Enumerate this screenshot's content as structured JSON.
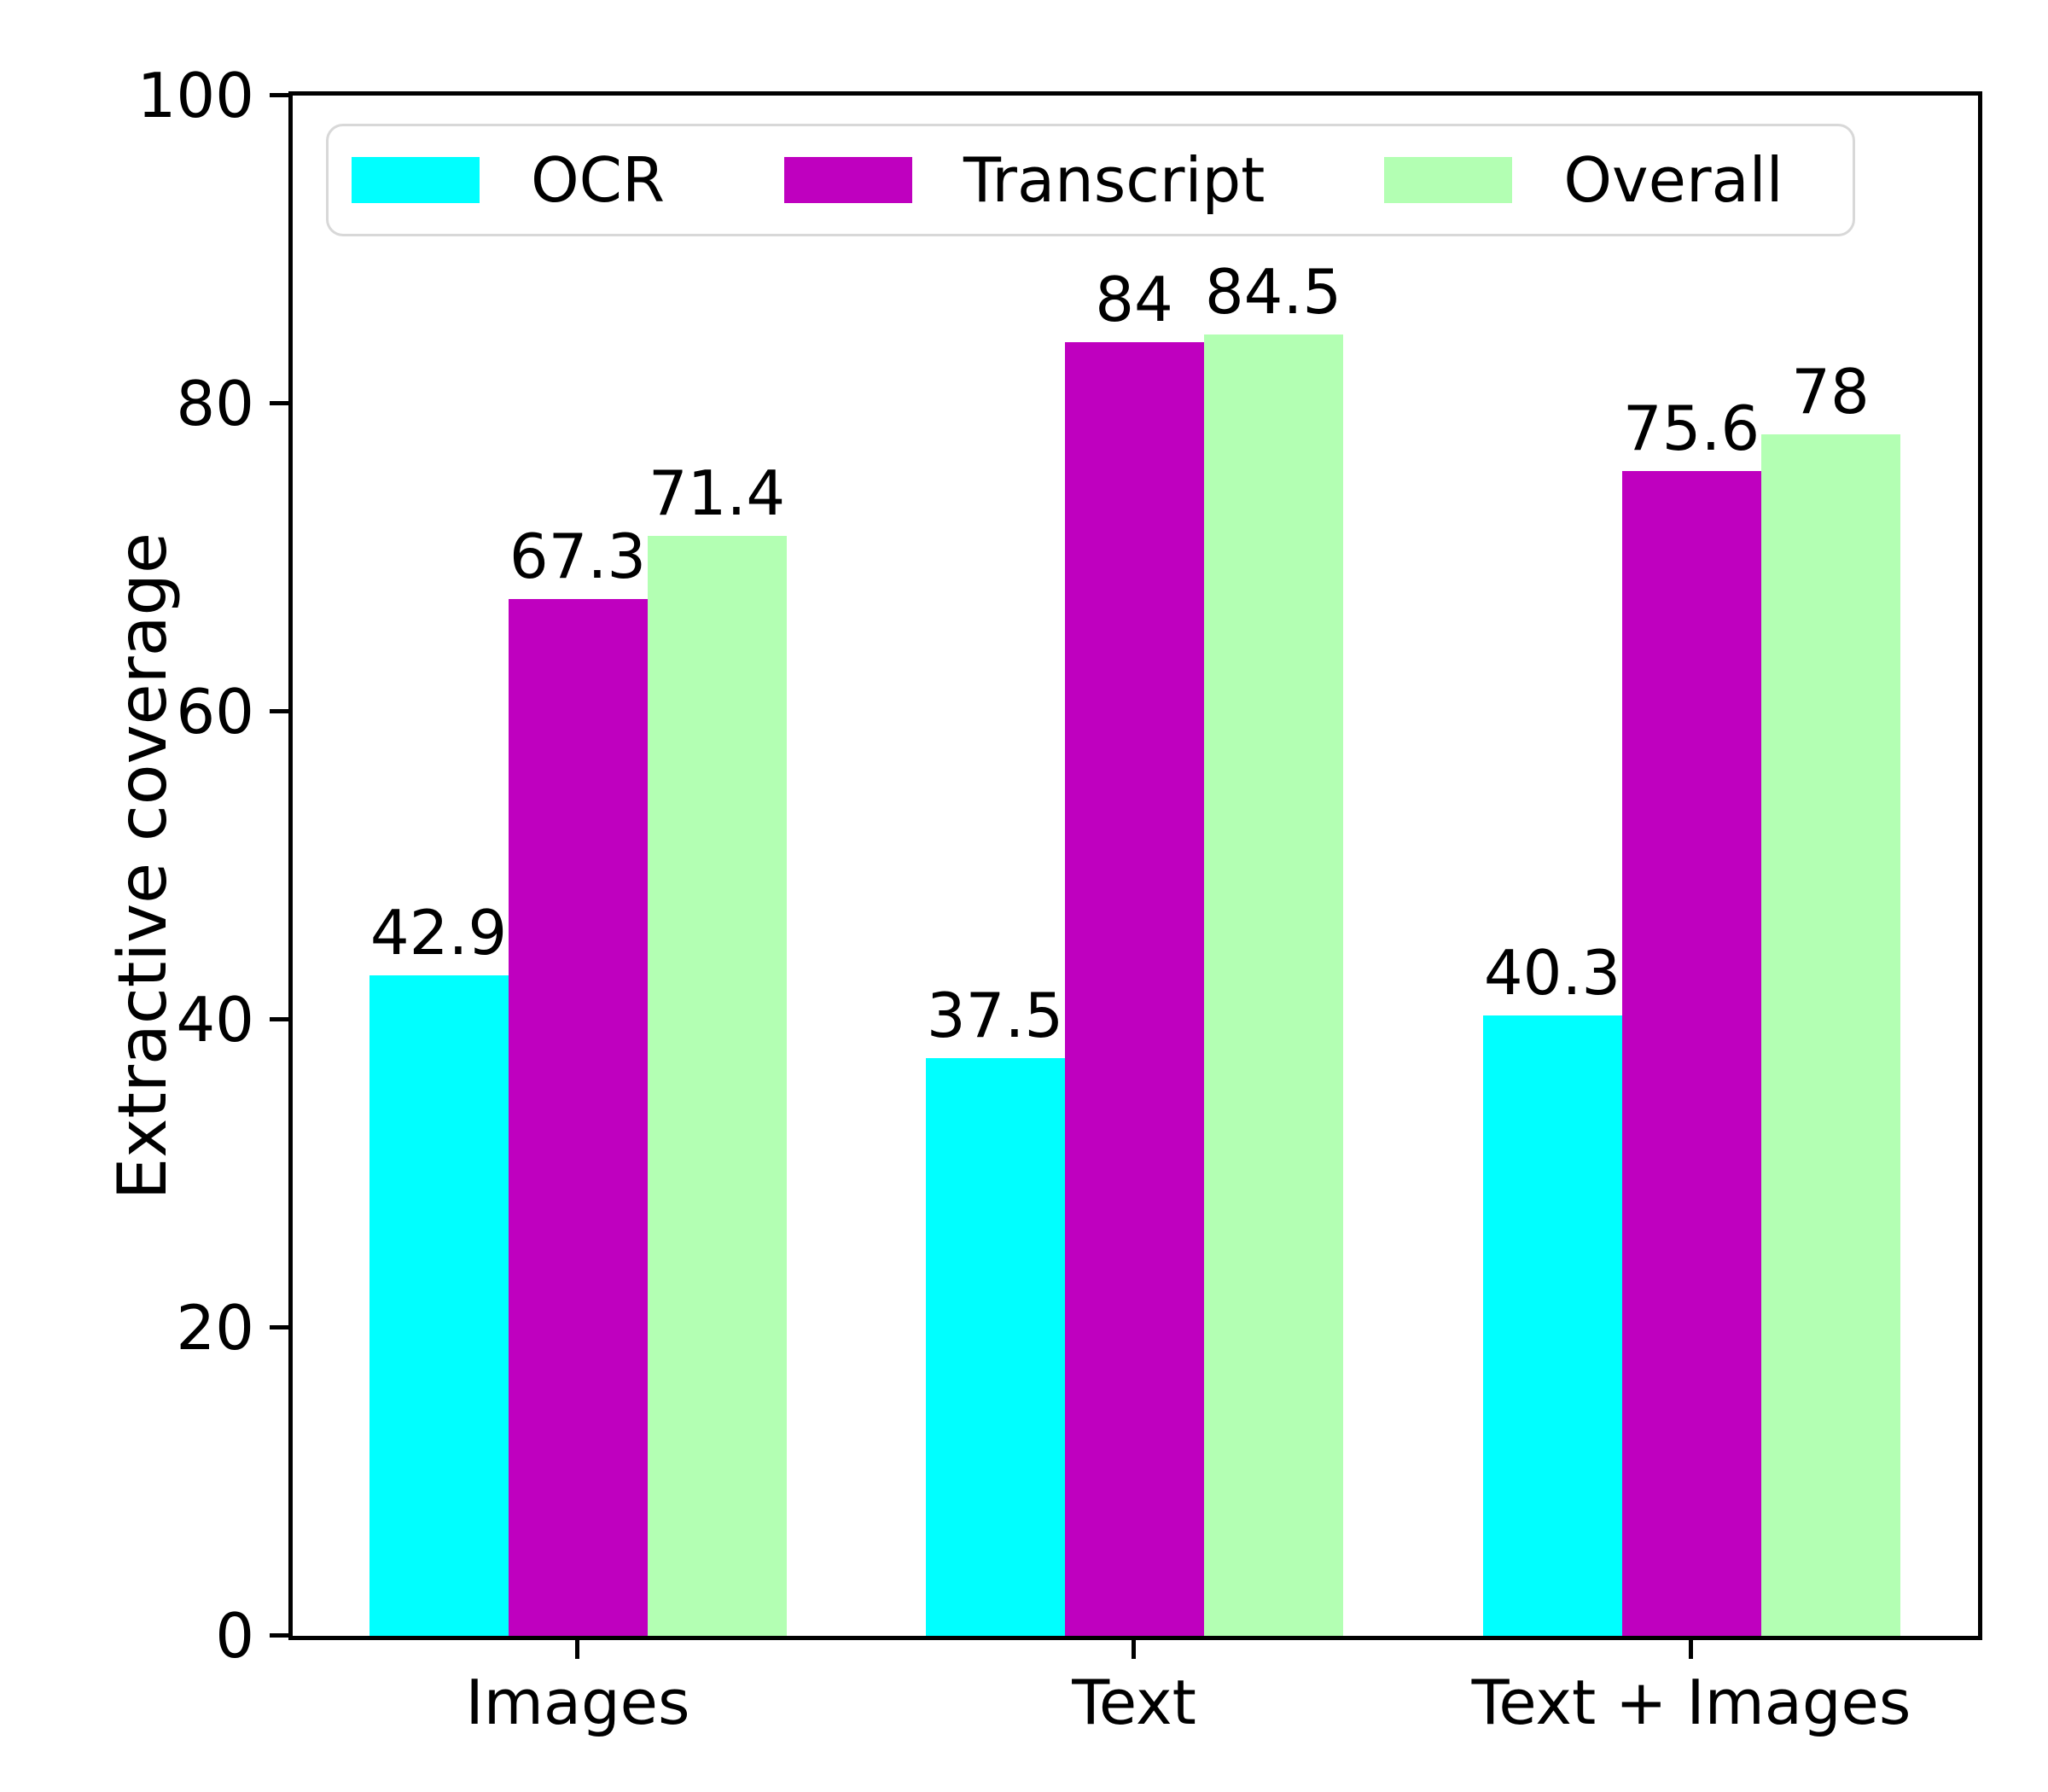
{
  "figure": {
    "background": "#ffffff",
    "axis_color": "#000000",
    "legend_border_color": "#d8d8d8"
  },
  "chart_data": {
    "type": "bar",
    "title": "",
    "xlabel": "",
    "ylabel": "Extractive coverage",
    "categories": [
      "Images",
      "Text",
      "Text + Images"
    ],
    "series": [
      {
        "name": "OCR",
        "color": "#00ffff",
        "values": [
          42.9,
          37.5,
          40.3
        ],
        "labels": [
          "42.9",
          "37.5",
          "40.3"
        ]
      },
      {
        "name": "Transcript",
        "color": "#bf00bf",
        "values": [
          67.3,
          84.0,
          75.6
        ],
        "labels": [
          "67.3",
          "84",
          "75.6"
        ]
      },
      {
        "name": "Overall",
        "color": "#b3ffb3",
        "values": [
          71.4,
          84.5,
          78.0
        ],
        "labels": [
          "71.4",
          "84.5",
          "78"
        ]
      }
    ],
    "ylim": [
      0,
      100
    ],
    "yticks": [
      0,
      20,
      40,
      60,
      80,
      100
    ],
    "ytick_labels": [
      "0",
      "20",
      "40",
      "60",
      "80",
      "100"
    ],
    "grid": false,
    "bar_value_labels": true,
    "legend_position": "upper center inside",
    "legend_entries": [
      "OCR",
      "Transcript",
      "Overall"
    ]
  }
}
